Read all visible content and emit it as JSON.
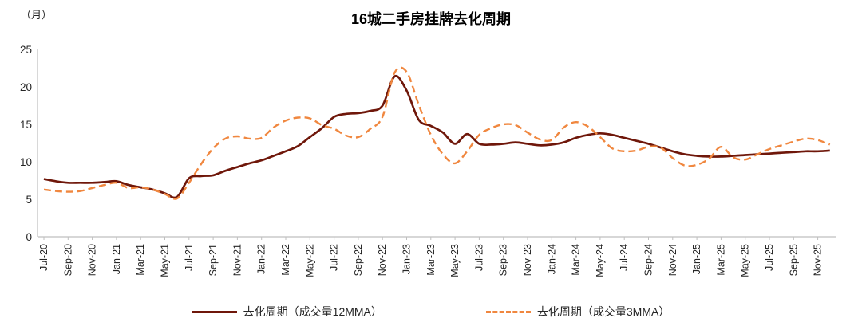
{
  "title": "16城二手房挂牌去化周期",
  "y_axis": {
    "unit": "（月）",
    "ticks": [
      0,
      5,
      10,
      15,
      20,
      25
    ],
    "min": 0,
    "max": 25
  },
  "legend": {
    "items": [
      {
        "label": "去化周期（成交量12MMA）",
        "style": "solid",
        "color": "#6f170a"
      },
      {
        "label": "去化周期（成交量3MMA）",
        "style": "dashed",
        "color": "#f0873f"
      }
    ]
  },
  "chart_data": {
    "type": "line",
    "title": "16城二手房挂牌去化周期",
    "ylabel": "（月）",
    "ylim": [
      0,
      25
    ],
    "grid": false,
    "legend_position": "bottom",
    "x": [
      "Jul-20",
      "Aug-20",
      "Sep-20",
      "Oct-20",
      "Nov-20",
      "Dec-20",
      "Jan-21",
      "Feb-21",
      "Mar-21",
      "Apr-21",
      "May-21",
      "Jun-21",
      "Jul-21",
      "Aug-21",
      "Sep-21",
      "Oct-21",
      "Nov-21",
      "Dec-21",
      "Jan-22",
      "Feb-22",
      "Mar-22",
      "Apr-22",
      "May-22",
      "Jun-22",
      "Jul-22",
      "Aug-22",
      "Sep-22",
      "Oct-22",
      "Nov-22",
      "Dec-22",
      "Jan-23",
      "Feb-23",
      "Mar-23",
      "Apr-23",
      "May-23",
      "Jun-23",
      "Jul-23",
      "Aug-23",
      "Sep-23",
      "Oct-23",
      "Nov-23",
      "Dec-23",
      "Jan-24",
      "Feb-24",
      "Mar-24",
      "Apr-24",
      "May-24",
      "Jun-24",
      "Jul-24",
      "Aug-24",
      "Sep-24",
      "Oct-24",
      "Nov-24",
      "Dec-24",
      "Jan-25",
      "Feb-25",
      "Mar-25",
      "Apr-25",
      "May-25",
      "Jun-25",
      "Jul-25",
      "Aug-25",
      "Sep-25",
      "Oct-25",
      "Nov-25",
      "Dec-25"
    ],
    "x_tick_labels": [
      "Jul-20",
      "Sep-20",
      "Nov-20",
      "Jan-21",
      "Mar-21",
      "May-21",
      "Jul-21",
      "Sep-21",
      "Nov-21",
      "Jan-22",
      "Mar-22",
      "May-22",
      "Jul-22",
      "Sep-22",
      "Nov-22",
      "Jan-23",
      "Mar-23",
      "May-23",
      "Jul-23",
      "Sep-23",
      "Nov-23",
      "Jan-24",
      "Mar-24",
      "May-24",
      "Jul-24",
      "Sep-24",
      "Nov-24",
      "Jan-25",
      "Mar-25",
      "May-25",
      "Jul-25",
      "Sep-25",
      "Nov-25"
    ],
    "series": [
      {
        "name": "去化周期（成交量12MMA）",
        "style": "solid",
        "color": "#6f170a",
        "values": [
          7.7,
          7.4,
          7.2,
          7.2,
          7.2,
          7.3,
          7.4,
          6.9,
          6.6,
          6.3,
          5.8,
          5.3,
          7.8,
          8.1,
          8.2,
          8.8,
          9.3,
          9.8,
          10.2,
          10.8,
          11.4,
          12.1,
          13.3,
          14.5,
          16.0,
          16.4,
          16.5,
          16.8,
          17.5,
          21.4,
          19.5,
          15.6,
          14.8,
          13.9,
          12.4,
          13.7,
          12.4,
          12.3,
          12.4,
          12.6,
          12.4,
          12.2,
          12.3,
          12.6,
          13.2,
          13.6,
          13.8,
          13.6,
          13.2,
          12.8,
          12.4,
          11.9,
          11.4,
          11.0,
          10.8,
          10.7,
          10.7,
          10.8,
          10.9,
          11.0,
          11.1,
          11.2,
          11.3,
          11.4,
          11.4,
          11.5
        ]
      },
      {
        "name": "去化周期（成交量3MMA）",
        "style": "dashed",
        "color": "#f0873f",
        "values": [
          6.3,
          6.1,
          6.0,
          6.1,
          6.5,
          6.9,
          7.2,
          6.5,
          6.6,
          6.3,
          5.7,
          5.1,
          7.2,
          9.7,
          11.8,
          13.1,
          13.4,
          13.1,
          13.2,
          14.6,
          15.5,
          15.9,
          15.8,
          14.9,
          14.4,
          13.5,
          13.3,
          14.4,
          16.0,
          21.9,
          22.0,
          17.6,
          13.6,
          11.0,
          9.8,
          11.4,
          13.6,
          14.5,
          15.0,
          14.9,
          13.9,
          13.0,
          12.9,
          14.6,
          15.3,
          14.7,
          13.3,
          11.8,
          11.4,
          11.5,
          12.0,
          11.9,
          10.5,
          9.5,
          9.6,
          10.4,
          12.0,
          10.6,
          10.3,
          11.0,
          11.7,
          12.2,
          12.7,
          13.1,
          12.9,
          12.3
        ]
      }
    ]
  }
}
